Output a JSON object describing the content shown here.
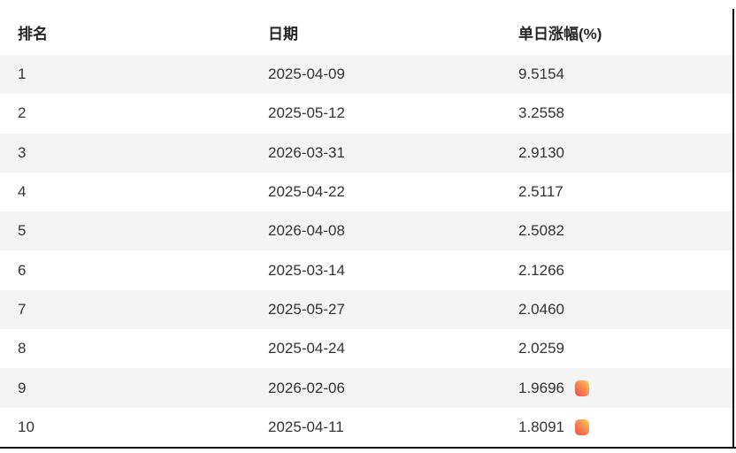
{
  "table": {
    "columns": [
      {
        "key": "rank",
        "label": "排名"
      },
      {
        "key": "date",
        "label": "日期"
      },
      {
        "key": "gain",
        "label": "单日涨幅(%)"
      }
    ],
    "rows": [
      {
        "rank": "1",
        "date": "2025-04-09",
        "gain": "9.5154",
        "hot_badge": false
      },
      {
        "rank": "2",
        "date": "2025-05-12",
        "gain": "3.2558",
        "hot_badge": false
      },
      {
        "rank": "3",
        "date": "2026-03-31",
        "gain": "2.9130",
        "hot_badge": false
      },
      {
        "rank": "4",
        "date": "2025-04-22",
        "gain": "2.5117",
        "hot_badge": false
      },
      {
        "rank": "5",
        "date": "2026-04-08",
        "gain": "2.5082",
        "hot_badge": false
      },
      {
        "rank": "6",
        "date": "2025-03-14",
        "gain": "2.1266",
        "hot_badge": false
      },
      {
        "rank": "7",
        "date": "2025-05-27",
        "gain": "2.0460",
        "hot_badge": false
      },
      {
        "rank": "8",
        "date": "2025-04-24",
        "gain": "2.0259",
        "hot_badge": false
      },
      {
        "rank": "9",
        "date": "2026-02-06",
        "gain": "1.9696",
        "hot_badge": true
      },
      {
        "rank": "10",
        "date": "2025-04-11",
        "gain": "1.8091",
        "hot_badge": true
      }
    ]
  },
  "colors": {
    "stripe": "#f4f4f4",
    "text": "#333333",
    "header_text": "#262626",
    "border": "#111111",
    "badge_gradient_start": "#ee4f4e",
    "badge_gradient_end": "#fdd155"
  },
  "icons": {
    "hot_badge": "gradient-rounded-square"
  }
}
